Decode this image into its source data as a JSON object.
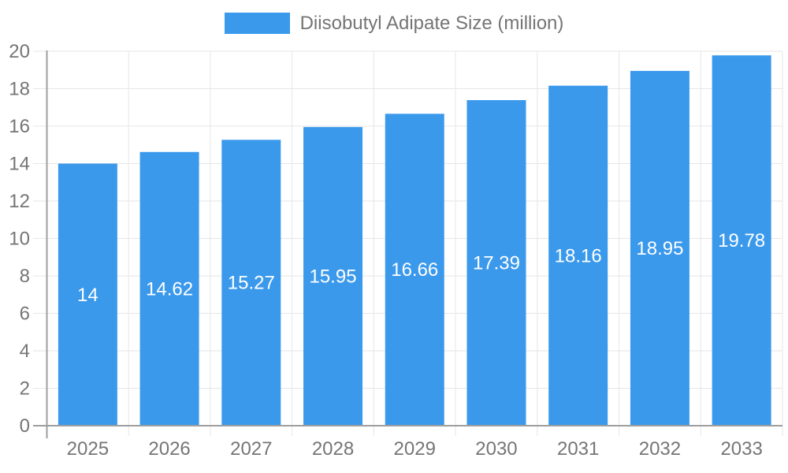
{
  "legend": {
    "label": "Diisobutyl Adipate Size (million)"
  },
  "colors": {
    "bar": "#3B99EC",
    "grid": "#E6E6E6",
    "axis": "#9E9E9E",
    "tick_text": "#757575",
    "value_label_text": "#FFFFFF",
    "background": "#FFFFFF"
  },
  "chart_data": {
    "type": "bar",
    "title": "Diisobutyl Adipate Size (million)",
    "categories": [
      "2025",
      "2026",
      "2027",
      "2028",
      "2029",
      "2030",
      "2031",
      "2032",
      "2033"
    ],
    "series": [
      {
        "name": "Diisobutyl Adipate Size (million)",
        "values": [
          14,
          14.62,
          15.27,
          15.95,
          16.66,
          17.39,
          18.16,
          18.95,
          19.78
        ]
      }
    ],
    "bar_value_labels": [
      "14",
      "14.62",
      "15.27",
      "15.95",
      "16.66",
      "17.39",
      "18.16",
      "18.95",
      "19.78"
    ],
    "xlabel": "",
    "ylabel": "",
    "ylim": [
      0,
      20
    ],
    "ytick_step": 2,
    "grid": true,
    "legend_position": "top",
    "value_label_position": "center-of-bar"
  }
}
